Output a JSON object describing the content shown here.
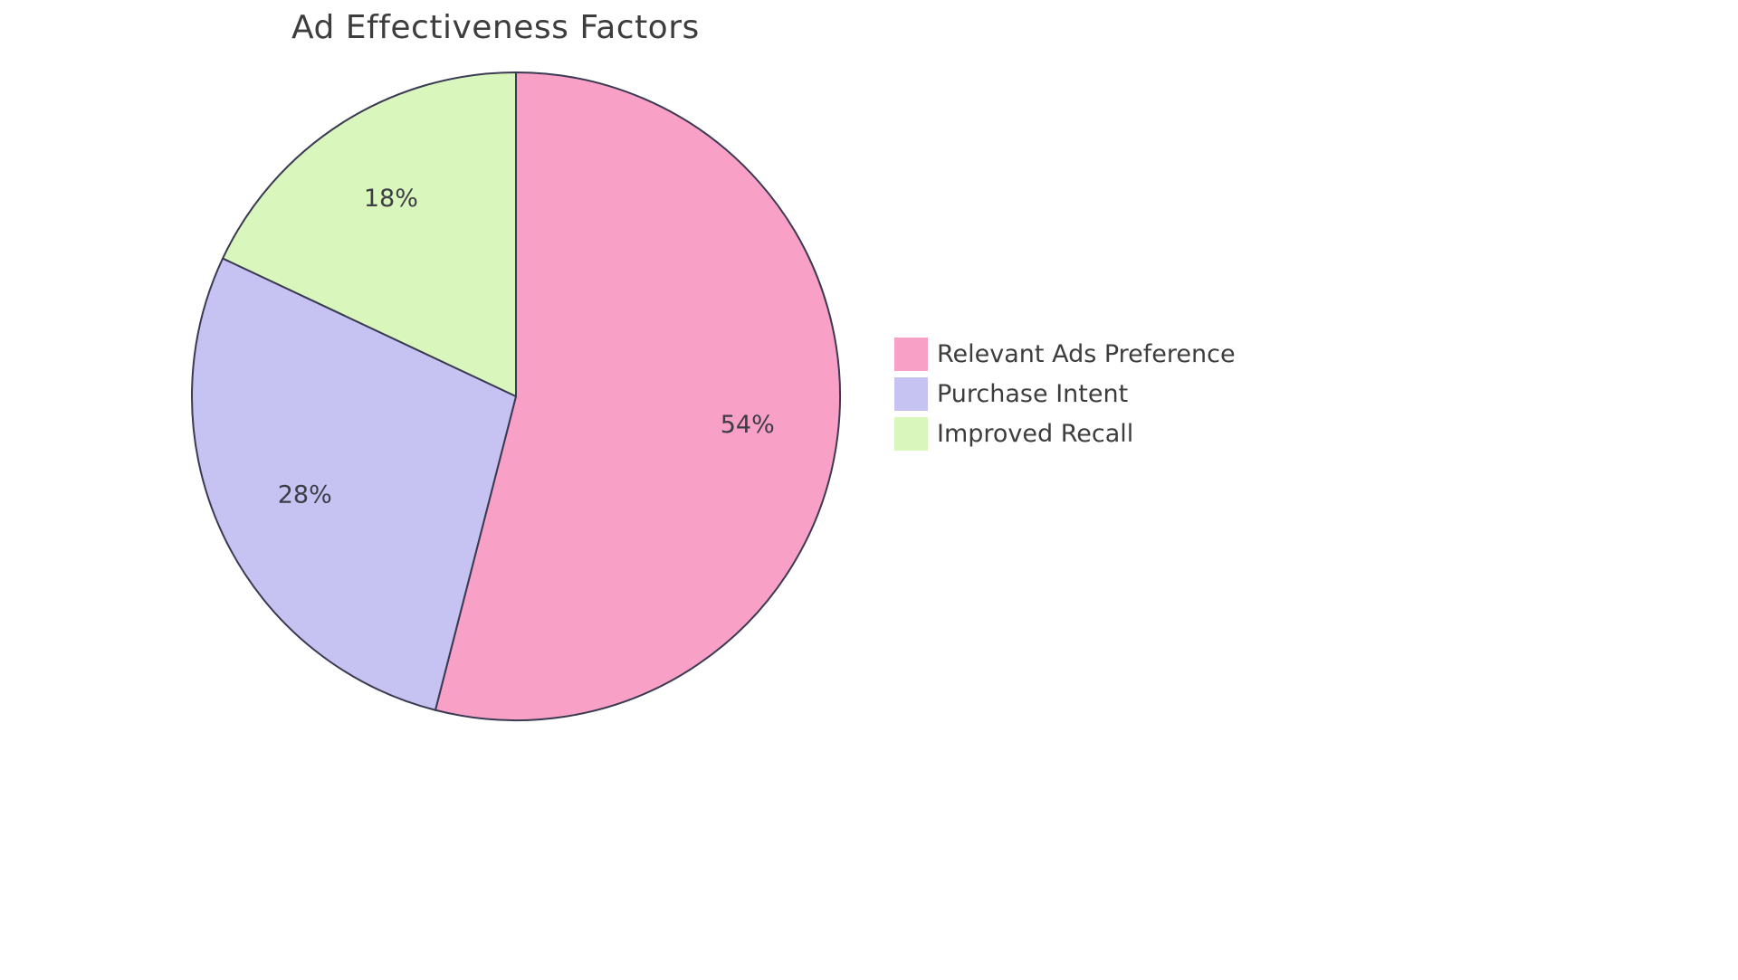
{
  "chart_data": {
    "type": "pie",
    "title": "Ad Effectiveness Factors",
    "segments": [
      {
        "label": "Relevant Ads Preference",
        "value": 54,
        "percent_label": "54%",
        "color": "#F8A0C6"
      },
      {
        "label": "Purchase Intent",
        "value": 28,
        "percent_label": "28%",
        "color": "#C6C3F2"
      },
      {
        "label": "Improved Recall",
        "value": 18,
        "percent_label": "18%",
        "color": "#D9F6BD"
      }
    ],
    "start_angle_deg": -90,
    "direction": "clockwise",
    "stroke_color": "#3A3A52",
    "label_color": "#3D3D46",
    "legend_position": "right",
    "legend_labels": [
      "Relevant Ads Preference",
      "Purchase Intent",
      "Improved Recall"
    ]
  }
}
